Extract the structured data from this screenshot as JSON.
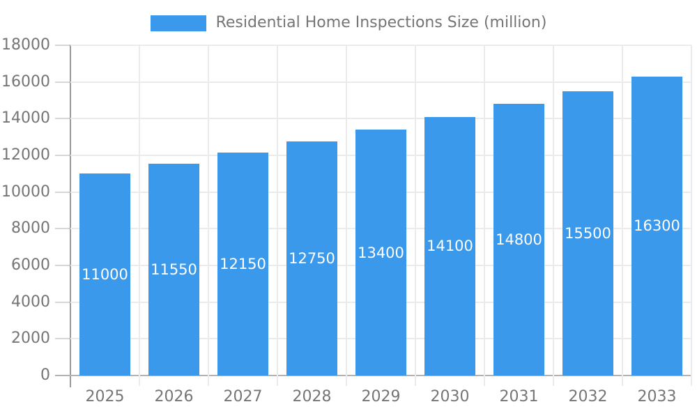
{
  "chart_data": {
    "type": "bar",
    "legend_label": "Residential Home Inspections Size (million)",
    "legend_position": "top",
    "categories": [
      "2025",
      "2026",
      "2027",
      "2028",
      "2029",
      "2030",
      "2031",
      "2032",
      "2033"
    ],
    "values": [
      11000,
      11550,
      12150,
      12750,
      13400,
      14100,
      14800,
      15500,
      16300
    ],
    "title": "",
    "xlabel": "",
    "ylabel": "",
    "ylim": [
      0,
      18000
    ],
    "ytick_step": 2000,
    "grid": true,
    "colors": {
      "bar": "#3b99ec",
      "value_label": "#ffffff",
      "axis_text": "#757575",
      "legend_text": "#757575",
      "gridline": "#ebebeb",
      "tick": "#d6d6d6",
      "y_axis_line": "#999999",
      "baseline": "#b3b3b3"
    }
  }
}
